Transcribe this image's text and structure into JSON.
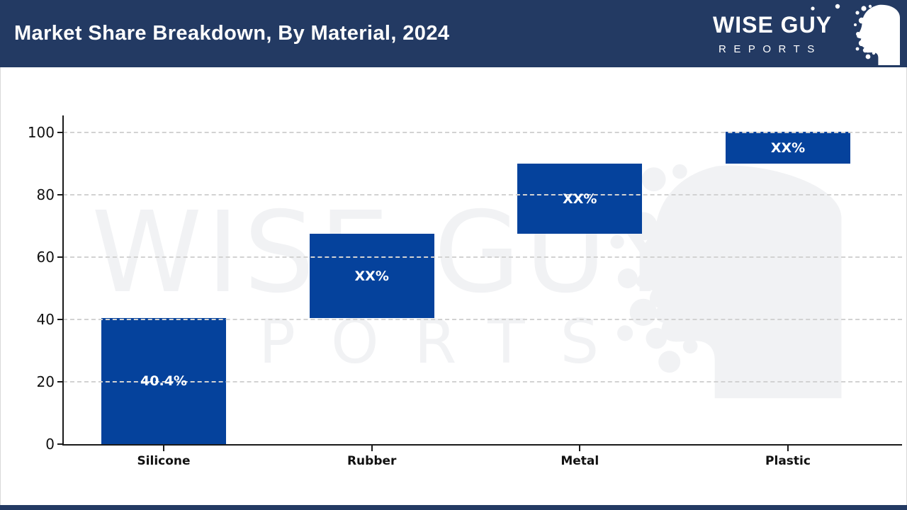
{
  "header": {
    "title": "Market Share Breakdown, By Material, 2024",
    "logo": {
      "wordmark": "WISE GUY",
      "subtext": "REPORTS"
    }
  },
  "watermark": {
    "wordmark": "WISE GUY",
    "subtext": "REPORTS"
  },
  "chart_data": {
    "type": "bar",
    "variant": "waterfall",
    "title": "Market Share Breakdown, By Material, 2024",
    "categories": [
      "Silicone",
      "Rubber",
      "Metal",
      "Plastic"
    ],
    "segments": [
      {
        "category": "Silicone",
        "start": 0,
        "end": 40.4,
        "label": "40.4%"
      },
      {
        "category": "Rubber",
        "start": 40.4,
        "end": 67.4,
        "label": "XX%"
      },
      {
        "category": "Metal",
        "start": 67.4,
        "end": 89.9,
        "label": "XX%"
      },
      {
        "category": "Plastic",
        "start": 89.9,
        "end": 100.3,
        "label": "XX%"
      }
    ],
    "yticks": [
      0,
      20,
      40,
      60,
      80,
      100
    ],
    "ylim": [
      0,
      105.5
    ],
    "grid": "horizontal-dashed",
    "legend": null,
    "colors": {
      "bar": "#05429C",
      "grid": "#d2d2d2",
      "axis": "#1a1a1a",
      "label_on_bar": "#ffffff",
      "tick_label": "#111111"
    }
  },
  "colors": {
    "header_bg": "#233A63",
    "body_bg": "#ffffff",
    "watermark": "#f1f2f4",
    "bottom_strip": "#233A63"
  }
}
